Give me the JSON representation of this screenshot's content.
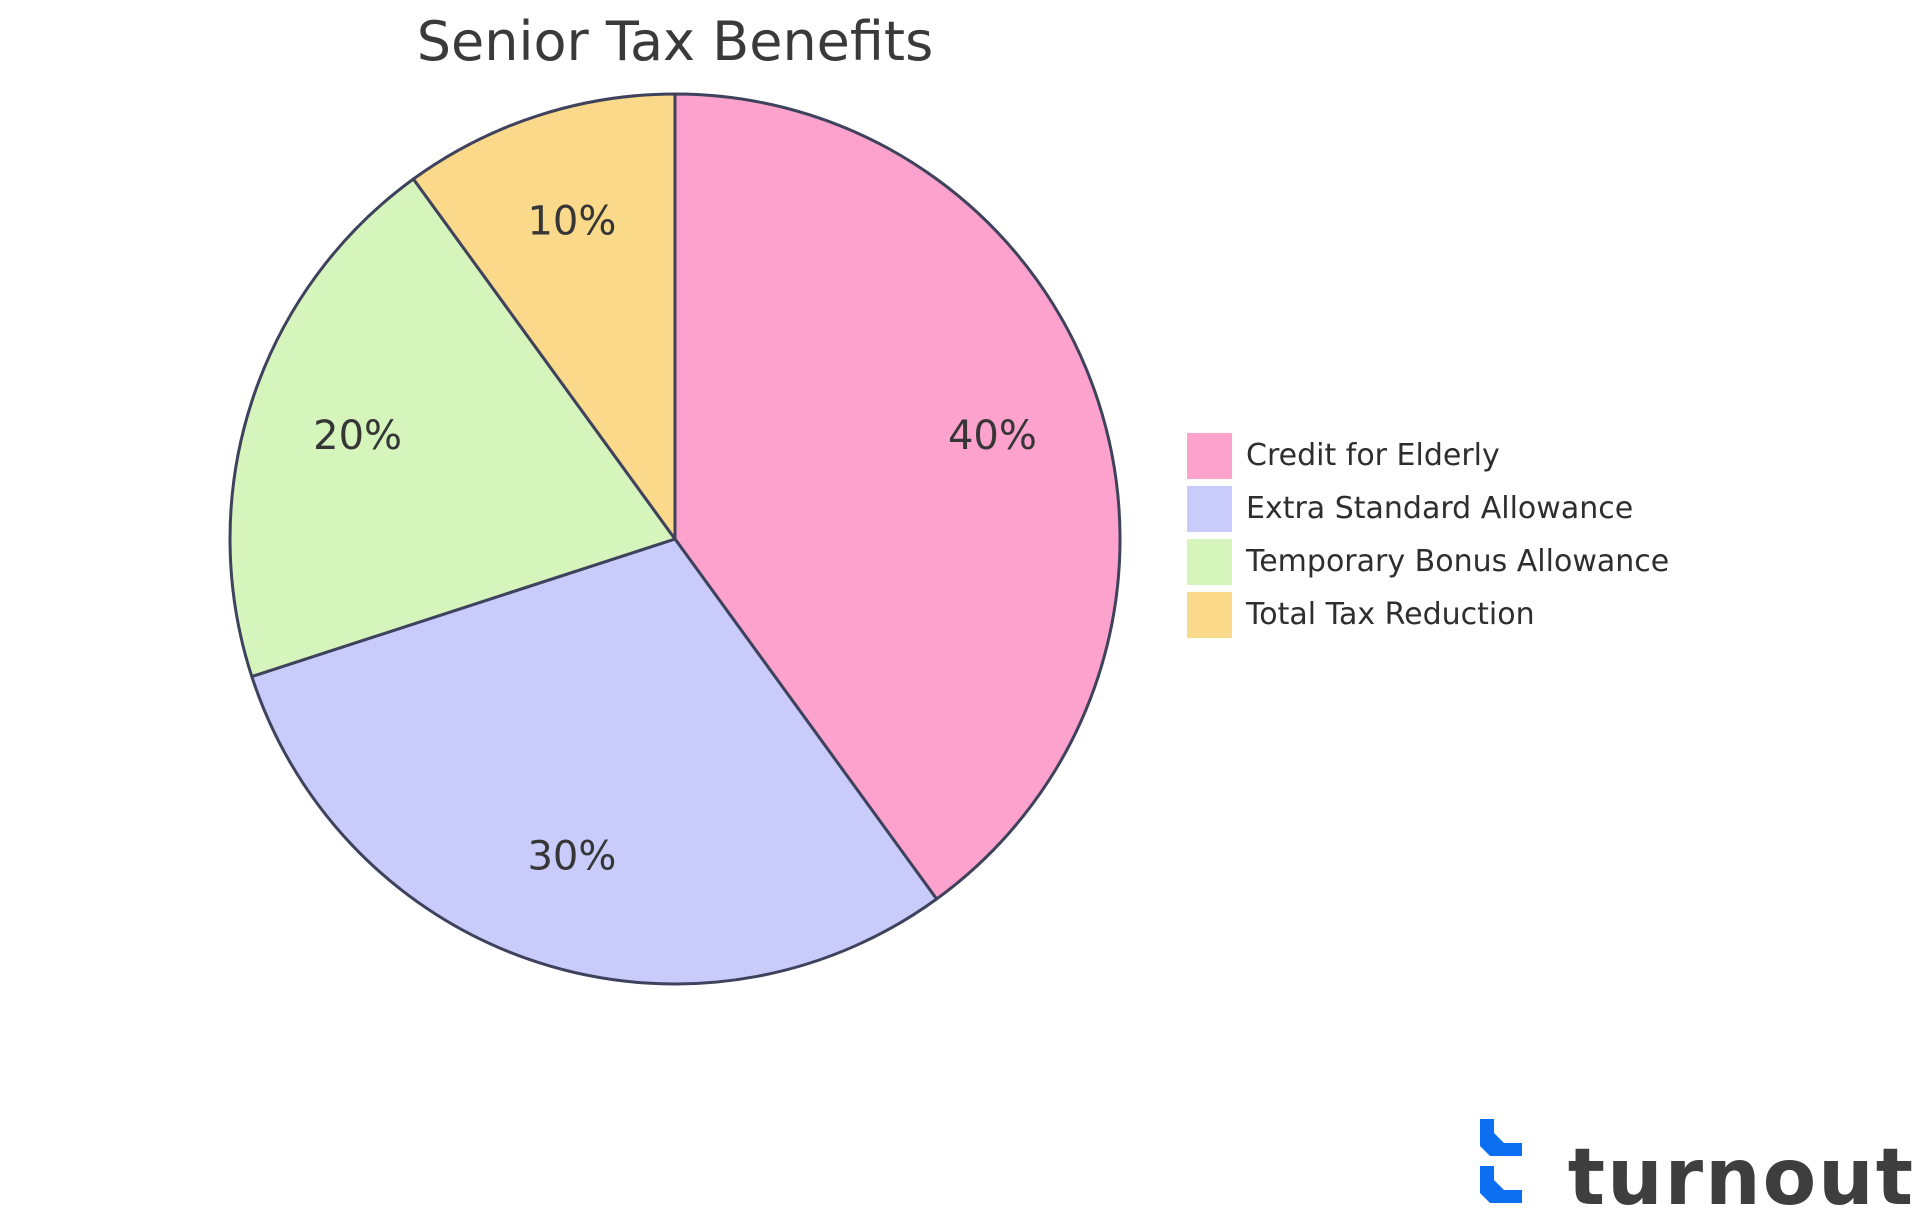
{
  "page": {
    "background": "#FFFFFF"
  },
  "chart_data": {
    "type": "pie",
    "title": "Senior Tax Benefits",
    "categories": [
      "Credit for Elderly",
      "Extra Standard Allowance",
      "Temporary Bonus Allowance",
      "Total Tax Reduction"
    ],
    "values": [
      40,
      30,
      20,
      10
    ],
    "slice_labels": [
      "40%",
      "30%",
      "20%",
      "10%"
    ],
    "colors": [
      "#FCA2CC",
      "#C9CCFB",
      "#D6F5BC",
      "#FAD98B"
    ],
    "edge_color": "#3E425C",
    "label_color": "#363636",
    "title_color": "#3A3A3A",
    "legend_text_color": "#2E2E2E",
    "start_angle": "12 o'clock",
    "direction": "clockwise",
    "legend_position": "right",
    "grid": "off"
  },
  "branding": {
    "logo_text": "turnout",
    "logo_icon": "turnout-t-icon",
    "logo_icon_color": "#0C6FF2",
    "logo_text_color": "#3E3E3E"
  }
}
